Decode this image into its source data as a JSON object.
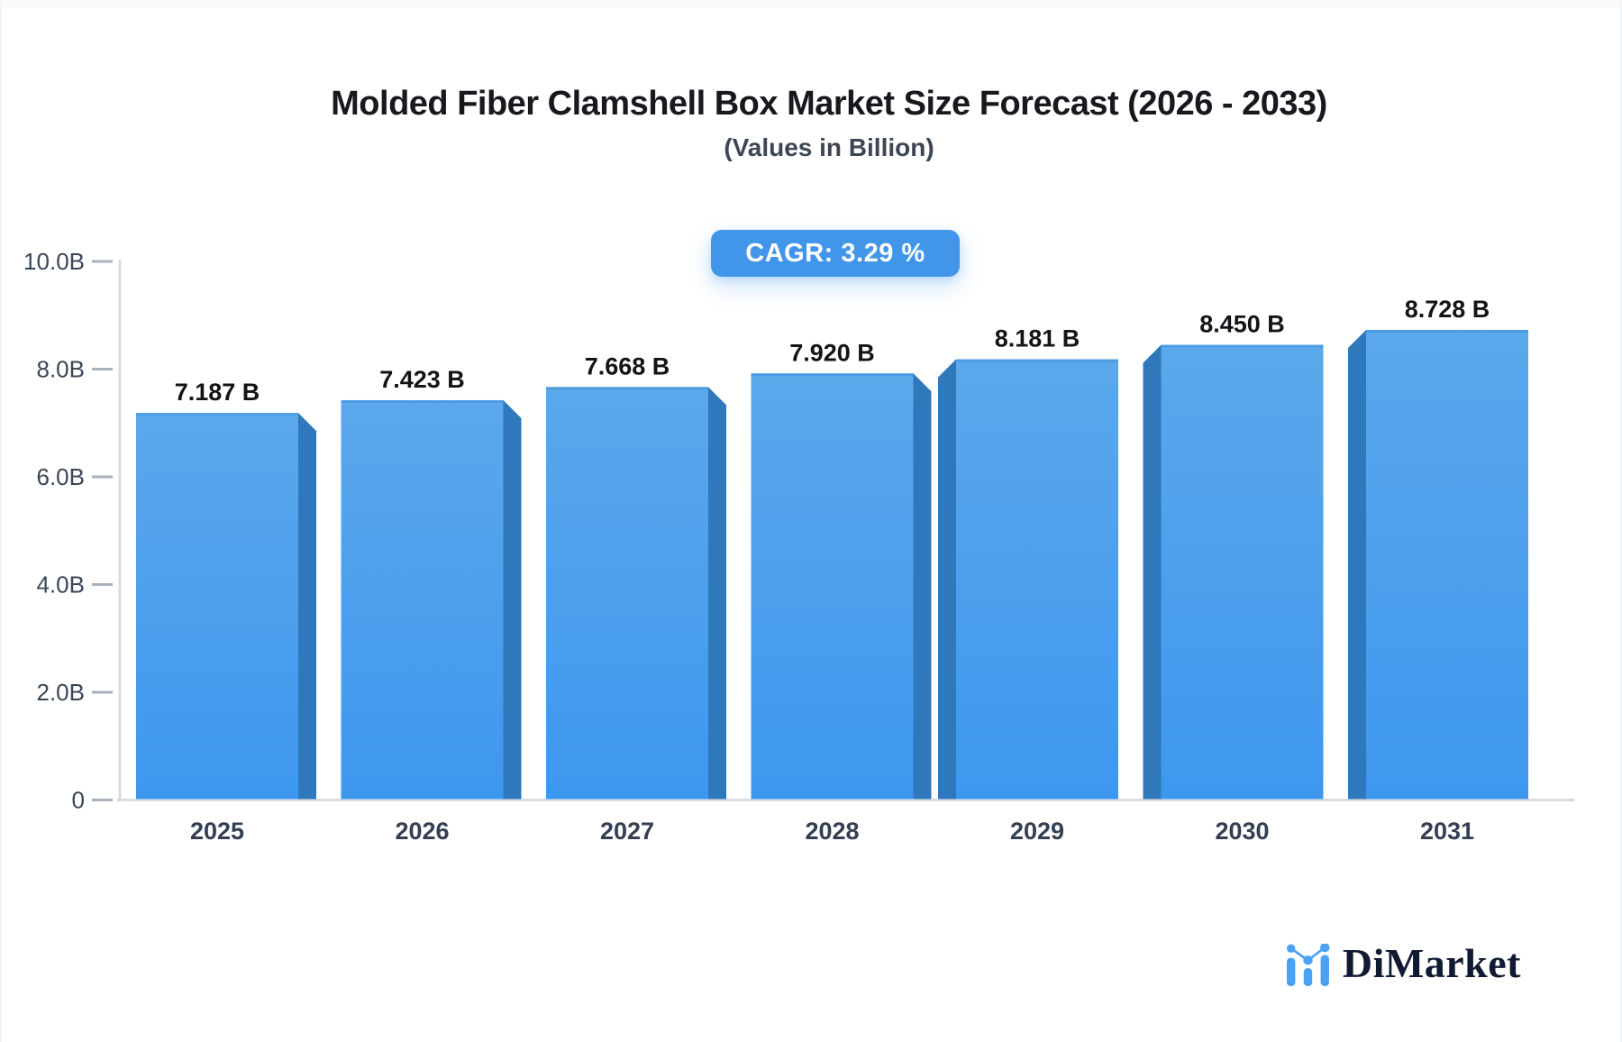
{
  "chart_data": {
    "type": "bar",
    "title": "Molded Fiber Clamshell Box Market Size Forecast (2026 - 2033)",
    "subtitle": "(Values in Billion)",
    "cagr_label": "CAGR: 3.29 %",
    "categories": [
      "2025",
      "2026",
      "2027",
      "2028",
      "2029",
      "2030",
      "2031"
    ],
    "values": [
      7.187,
      7.423,
      7.668,
      7.92,
      8.181,
      8.45,
      8.728
    ],
    "value_labels": [
      "7.187 B",
      "7.423 B",
      "7.668 B",
      "7.920 B",
      "8.181 B",
      "8.450 B",
      "8.728 B"
    ],
    "xlabel": "",
    "ylabel": "",
    "ylim": [
      0,
      10
    ],
    "yticks": [
      {
        "v": 0,
        "label": "0"
      },
      {
        "v": 2,
        "label": "2.0B"
      },
      {
        "v": 4,
        "label": "4.0B"
      },
      {
        "v": 6,
        "label": "6.0B"
      },
      {
        "v": 8,
        "label": "8.0B"
      },
      {
        "v": 10,
        "label": "10.0B"
      }
    ],
    "grid": false,
    "legend": false,
    "bar_style": "3d-beveled"
  },
  "logo": {
    "text": "DiMarket",
    "icon": "bar-line-chart-icon"
  },
  "colors": {
    "bar_face_top": "#5BA8EB",
    "bar_face_bottom": "#3E97EF",
    "bar_side": "#2E78BB",
    "bar_top_edge": "#4A9AE2",
    "badge_bg": "#4196EA",
    "badge_text": "#FFFFFF",
    "axis_line": "#D8DCE2",
    "tick_mark": "#A9B1BB",
    "tick_label": "#3A4656",
    "year_label": "#343F53",
    "value_label": "#121418",
    "title": "#17191E",
    "subtitle": "#3D4653",
    "logo_text": "#101B33",
    "logo_icon": "#4BA2F4"
  }
}
